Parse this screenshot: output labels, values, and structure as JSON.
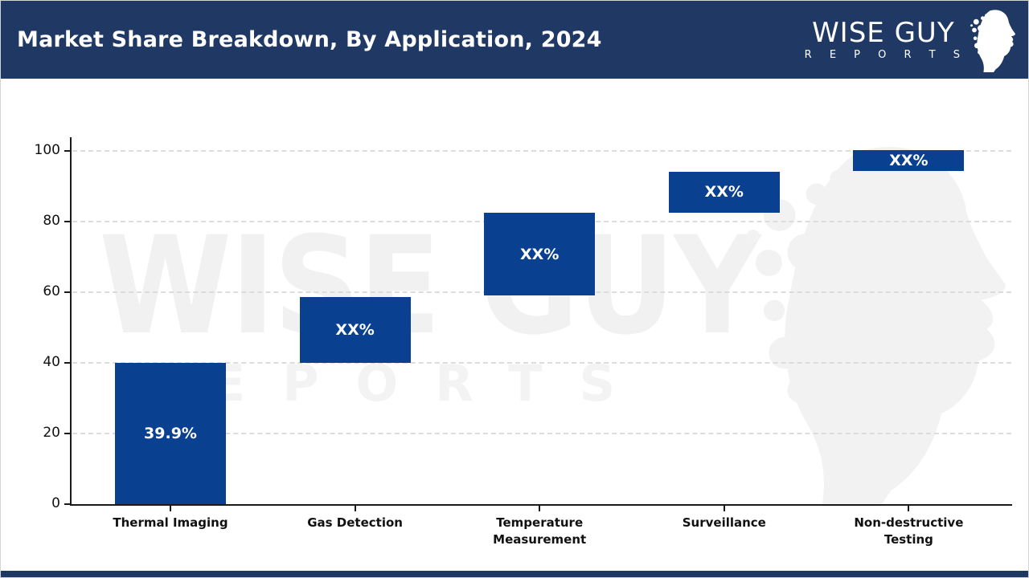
{
  "header": {
    "title": "Market Share Breakdown, By Application, 2024",
    "logo_line1": "WISE GUY",
    "logo_line2": "R E P O R T S"
  },
  "watermark": {
    "line1": "WISE GUY",
    "line2": "REPORTS"
  },
  "colors": {
    "header_bg": "#1f3864",
    "footer_bg": "#1f3864",
    "bar": "#0a4090",
    "bar_label": "#ffffff",
    "axis": "#1a1a1a",
    "grid": "#dcdcdc",
    "watermark": "#f2f2f2"
  },
  "chart_data": {
    "type": "bar",
    "subtype": "waterfall",
    "title": "Market Share Breakdown, By Application, 2024",
    "categories": [
      "Thermal Imaging",
      "Gas Detection",
      "Temperature\nMeasurement",
      "Surveillance",
      "Non-destructive\nTesting"
    ],
    "series": [
      {
        "name": "Market Share",
        "segments": [
          {
            "category": "Thermal Imaging",
            "start": 0,
            "end": 39.9,
            "label": "39.9%"
          },
          {
            "category": "Gas Detection",
            "start": 40,
            "end": 58.7,
            "label": "XX%"
          },
          {
            "category": "Temperature Measurement",
            "start": 59,
            "end": 82.4,
            "label": "XX%"
          },
          {
            "category": "Surveillance",
            "start": 82.5,
            "end": 94.1,
            "label": "XX%"
          },
          {
            "category": "Non-destructive Testing",
            "start": 94.3,
            "end": 100.3,
            "label": "XX%"
          }
        ]
      }
    ],
    "yticks": [
      0,
      20,
      40,
      60,
      80,
      100
    ],
    "ylim": [
      0,
      104
    ],
    "xlabel": "",
    "ylabel": "",
    "grid": "horizontal-dashed",
    "legend": "none"
  }
}
